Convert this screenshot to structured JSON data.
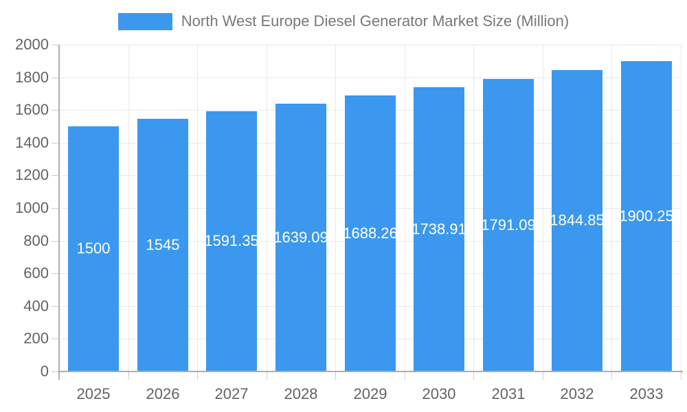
{
  "legend": {
    "label": "North West Europe Diesel Generator Market Size (Million)"
  },
  "chart_data": {
    "type": "bar",
    "title": "North West Europe Diesel Generator Market Size (Million)",
    "categories": [
      "2025",
      "2026",
      "2027",
      "2028",
      "2029",
      "2030",
      "2031",
      "2032",
      "2033"
    ],
    "values": [
      1500,
      1545,
      1591.35,
      1639.09,
      1688.26,
      1738.91,
      1791.09,
      1844.85,
      1900.25
    ],
    "value_labels": [
      "1500",
      "1545",
      "1591.35",
      "1639.09",
      "1688.26",
      "1738.91",
      "1791.09",
      "1844.85",
      "1900.25"
    ],
    "xlabel": "",
    "ylabel": "",
    "ylim": [
      0,
      2000
    ],
    "y_ticks": [
      0,
      200,
      400,
      600,
      800,
      1000,
      1200,
      1400,
      1600,
      1800,
      2000
    ],
    "grid": true,
    "legend_position": "top-center",
    "colors": {
      "bar": "#3b98ee",
      "bar_value_text": "#ffffff",
      "axis_text": "#636363",
      "legend_text": "#787878",
      "gridline": "#e9e9e9",
      "axis_line": "#adadad",
      "tick": "#cccccc"
    }
  }
}
